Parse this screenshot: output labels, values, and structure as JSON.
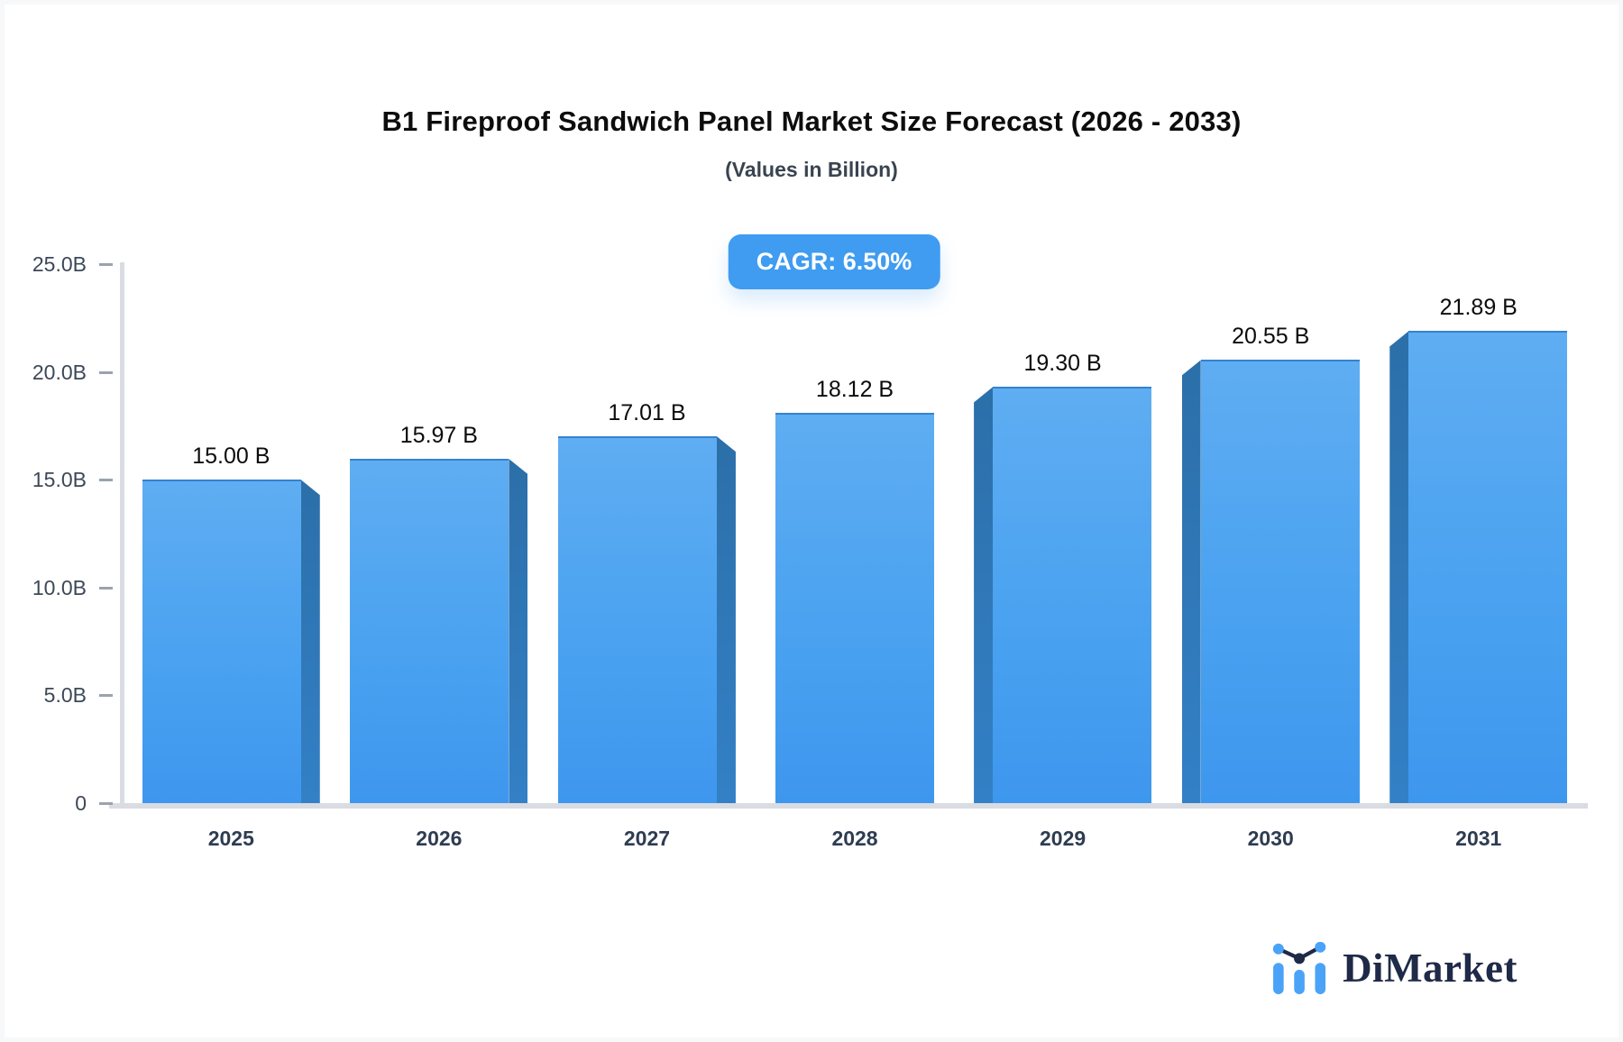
{
  "header": {
    "title": "B1 Fireproof Sandwich Panel Market Size Forecast (2026 - 2033)",
    "subtitle": "(Values in Billion)"
  },
  "badge": {
    "cagr_label": "CAGR: 6.50%"
  },
  "logo": {
    "text": "DiMarket",
    "icon": "bar-line-chart-icon"
  },
  "colors": {
    "accent": "#3f9cf0",
    "bar_face_top": "#5fadf2",
    "bar_face_bottom": "#3e97ee",
    "bar_bevel_dark": "#2c6fa9",
    "bar_bevel_light": "#3380c6",
    "axis_line": "#d9dce2",
    "tick_dash": "#9aa3ae",
    "y_label": "#3d4857",
    "x_label": "#2d3c51",
    "title_text": "#0d0d0d",
    "logo_navy": "#1e2a47",
    "logo_blue": "#4aa3f7"
  },
  "chart_data": {
    "type": "bar",
    "title": "B1 Fireproof Sandwich Panel Market Size Forecast (2026 - 2033)",
    "subtitle": "(Values in Billion)",
    "cagr": "6.50%",
    "categories": [
      "2025",
      "2026",
      "2027",
      "2028",
      "2029",
      "2030",
      "2031"
    ],
    "values": [
      15.0,
      15.97,
      17.01,
      18.12,
      19.3,
      20.55,
      21.89
    ],
    "bar_labels": [
      "15.00 B",
      "15.97 B",
      "17.01 B",
      "18.12 B",
      "19.30 B",
      "20.55 B",
      "21.89 B"
    ],
    "bevel_sides": [
      "right",
      "right",
      "right",
      "none",
      "left",
      "left",
      "left"
    ],
    "xlabel": "",
    "ylabel": "",
    "ylim": [
      0,
      25
    ],
    "yticks": [
      {
        "value": 25,
        "label": "25.0B"
      },
      {
        "value": 20,
        "label": "20.0B"
      },
      {
        "value": 15,
        "label": "15.0B"
      },
      {
        "value": 10,
        "label": "10.0B"
      },
      {
        "value": 5,
        "label": "5.0B"
      },
      {
        "value": 0,
        "label": "0"
      }
    ],
    "grid": false,
    "legend": false
  }
}
